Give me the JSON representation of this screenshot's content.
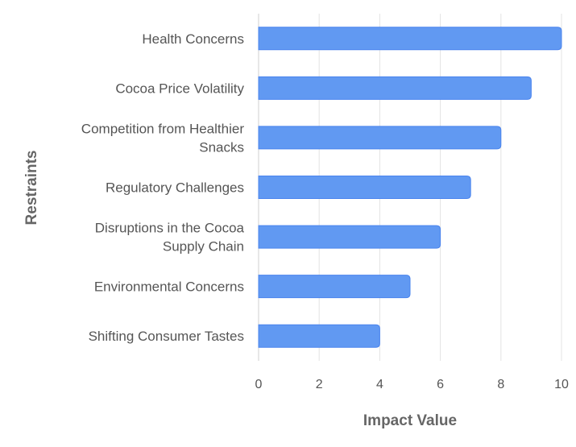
{
  "chart_data": {
    "type": "bar",
    "orientation": "horizontal",
    "title": "",
    "xlabel": "Impact Value",
    "ylabel": "Restraints",
    "categories": [
      [
        "Health Concerns"
      ],
      [
        "Cocoa Price Volatility"
      ],
      [
        "Competition from Healthier",
        "Snacks"
      ],
      [
        "Regulatory Challenges"
      ],
      [
        "Disruptions in the Cocoa",
        "Supply Chain"
      ],
      [
        "Environmental Concerns"
      ],
      [
        "Shifting Consumer Tastes"
      ]
    ],
    "values": [
      10,
      9,
      8,
      7,
      6,
      5,
      4
    ],
    "xlim": [
      0,
      10
    ],
    "xticks": [
      "0",
      "2",
      "4",
      "6",
      "8",
      "10"
    ],
    "grid": true,
    "colors": {
      "bar_fill": "#6199f2",
      "bar_stroke": "#4a84ee",
      "grid": "#e3e3e3",
      "text": "#555555"
    }
  }
}
